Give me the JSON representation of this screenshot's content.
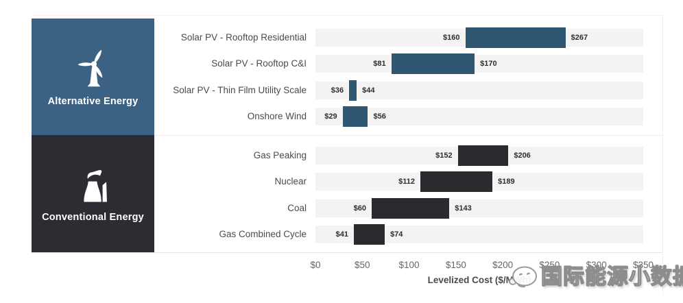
{
  "watermark": {
    "text": "国际能源小数据",
    "icon": "cartoon-face-icon"
  },
  "chart_data": {
    "type": "bar",
    "orientation": "horizontal",
    "style": "range-bars",
    "xlabel": "Levelized Cost ($/MWh)",
    "xlim": [
      0,
      350
    ],
    "track_color": "#F3F3F3",
    "ticks": [
      {
        "label": "$0",
        "value": 0
      },
      {
        "label": "$50",
        "value": 50
      },
      {
        "label": "$100",
        "value": 100
      },
      {
        "label": "$150",
        "value": 150
      },
      {
        "label": "$200",
        "value": 200
      },
      {
        "label": "$250",
        "value": 250
      },
      {
        "label": "$300",
        "value": 300
      },
      {
        "label": "$350",
        "value": 350
      }
    ],
    "groups": [
      {
        "name": "Alternative Energy",
        "icon": "wind-turbine-icon",
        "panel_color": "#3B6183",
        "bar_color": "#2F5771",
        "rows": [
          {
            "label": "Solar PV - Rooftop Residential",
            "min": 160,
            "max": 267,
            "min_label": "$160",
            "max_label": "$267"
          },
          {
            "label": "Solar PV - Rooftop C&I",
            "min": 81,
            "max": 170,
            "min_label": "$81",
            "max_label": "$170"
          },
          {
            "label": "Solar PV - Thin Film Utility Scale",
            "min": 36,
            "max": 44,
            "min_label": "$36",
            "max_label": "$44"
          },
          {
            "label": "Onshore Wind",
            "min": 29,
            "max": 56,
            "min_label": "$29",
            "max_label": "$56"
          }
        ]
      },
      {
        "name": "Conventional Energy",
        "icon": "cooling-tower-icon",
        "panel_color": "#2B2D33",
        "bar_color": "#2A2B2E",
        "rows": [
          {
            "label": "Gas Peaking",
            "min": 152,
            "max": 206,
            "min_label": "$152",
            "max_label": "$206"
          },
          {
            "label": "Nuclear",
            "min": 112,
            "max": 189,
            "min_label": "$112",
            "max_label": "$189"
          },
          {
            "label": "Coal",
            "min": 60,
            "max": 143,
            "min_label": "$60",
            "max_label": "$143"
          },
          {
            "label": "Gas Combined Cycle",
            "min": 41,
            "max": 74,
            "min_label": "$41",
            "max_label": "$74"
          }
        ]
      }
    ]
  }
}
